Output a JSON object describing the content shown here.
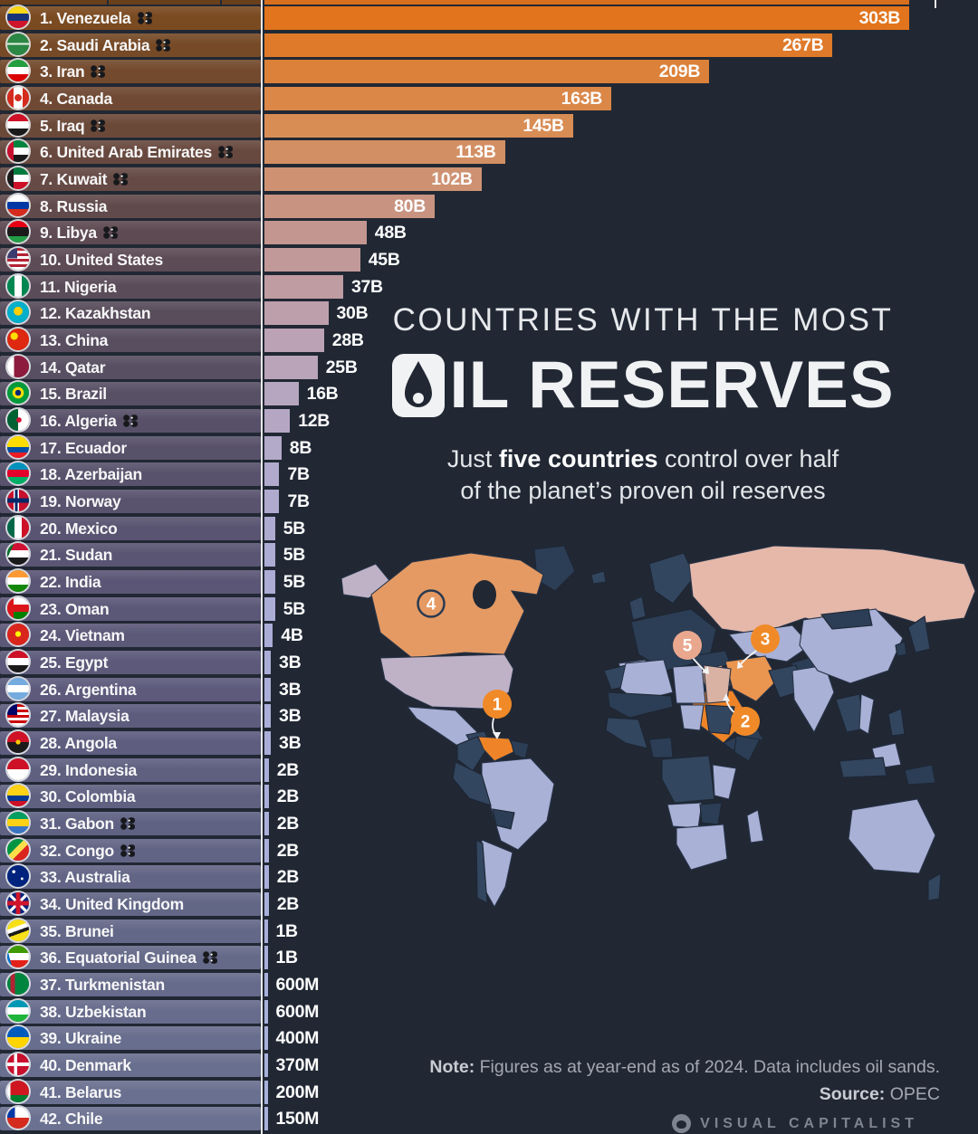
{
  "title": {
    "line1": "COUNTRIES WITH THE MOST",
    "line2_rest": "IL RESERVES"
  },
  "subtitle": {
    "pre": "Just ",
    "bold": "five countries",
    "post": " control over half",
    "line2": "of the planet’s proven oil reserves"
  },
  "footer": {
    "note_label": "Note:",
    "note_text": " Figures as at year-end as of 2024. Data includes oil sands.",
    "source_label": "Source:",
    "source_text": " OPEC",
    "brand": "VISUAL CAPITALIST"
  },
  "map": {
    "colors": {
      "canada": "#e59a63",
      "venezuela": "#ee8427",
      "saudi": "#ee8427",
      "iran": "#ea9550",
      "iraq": "#dba186",
      "russia": "#e5b8aa",
      "marker_orange": "#f08a28",
      "marker_salmon": "#e9a88e"
    },
    "markers": [
      {
        "label": "1",
        "country": "Venezuela"
      },
      {
        "label": "2",
        "country": "Saudi Arabia"
      },
      {
        "label": "3",
        "country": "Iran"
      },
      {
        "label": "4",
        "country": "Canada"
      },
      {
        "label": "5",
        "country": "Iraq"
      }
    ]
  },
  "chart_data": {
    "type": "bar",
    "title": "Countries with the Most Oil Reserves",
    "unit": "billion barrels",
    "xlim": [
      0,
      303
    ],
    "rows": [
      {
        "rank": 1,
        "id": "venezuela",
        "label": "1. Venezuela",
        "opec": true,
        "value": "303B",
        "billions": 303,
        "bar_color": "#e1741c",
        "label_bg": "#7a4a21",
        "flag": "linear-gradient(180deg,#f9d616 33%,#17337a 33% 66%,#cf142b 66%)"
      },
      {
        "rank": 2,
        "id": "saudi-arabia",
        "label": "2. Saudi Arabia",
        "opec": true,
        "value": "267B",
        "billions": 267,
        "bar_color": "#df7a2a",
        "label_bg": "#764a27",
        "flag": "linear-gradient(180deg,#2a8744 44%,#e8f3e8 44% 52%,#2a8744 52%)"
      },
      {
        "rank": 3,
        "id": "iran",
        "label": "3. Iran",
        "opec": true,
        "value": "209B",
        "billions": 209,
        "bar_color": "#dc8139",
        "label_bg": "#734a2d",
        "flag": "linear-gradient(180deg,#239f40 33%,#ffffff 33% 66%,#da0000 66%)"
      },
      {
        "rank": 4,
        "id": "canada",
        "label": "4. Canada",
        "opec": false,
        "value": "163B",
        "billions": 163,
        "bar_color": "#da8747",
        "label_bg": "#6f4933",
        "flag": "radial-gradient(circle at 50% 50%, #d52b1e 0 22%, rgba(0,0,0,0) 24%),linear-gradient(90deg,#d52b1e 30%,#ffffff 30% 70%,#d52b1e 70%)"
      },
      {
        "rank": 5,
        "id": "iraq",
        "label": "5. Iraq",
        "opec": true,
        "value": "145B",
        "billions": 145,
        "bar_color": "#d88d55",
        "label_bg": "#6b4939",
        "flag": "linear-gradient(180deg,#ce1126 33%,#ffffff 33% 66%,#1a1a1a 66%)"
      },
      {
        "rank": 6,
        "id": "uae",
        "label": "6. United Arab Emirates",
        "opec": true,
        "value": "113B",
        "billions": 113,
        "bar_color": "#d38f64",
        "label_bg": "#68493f",
        "flag": "linear-gradient(90deg,#c8102e 30%,rgba(0,0,0,0) 30%),linear-gradient(180deg,#00843d 33%,#ffffff 33% 66%,#1a1a1a 66%)"
      },
      {
        "rank": 7,
        "id": "kuwait",
        "label": "7. Kuwait",
        "opec": true,
        "value": "102B",
        "billions": 102,
        "bar_color": "#ce9272",
        "label_bg": "#654a45",
        "flag": "linear-gradient(90deg,#1a1a1a 30%,rgba(0,0,0,0) 30%),linear-gradient(180deg,#007a3d 33%,#ffffff 33% 66%,#ce1126 66%)"
      },
      {
        "rank": 8,
        "id": "russia",
        "label": "8. Russia",
        "opec": false,
        "value": "80B",
        "billions": 80,
        "bar_color": "#c89481",
        "label_bg": "#614a4c",
        "flag": "linear-gradient(180deg,#ffffff 33%,#0039a6 33% 66%,#d52b1e 66%)"
      },
      {
        "rank": 9,
        "id": "libya",
        "label": "9. Libya",
        "opec": true,
        "value": "48B",
        "billions": 48,
        "bar_color": "#c3968f",
        "label_bg": "#5e4a52",
        "flag": "linear-gradient(180deg,#e70013 30%,#1a1a1a 30% 70%,#239e46 70%)"
      },
      {
        "rank": 10,
        "id": "usa",
        "label": "10. United States",
        "opec": false,
        "value": "45B",
        "billions": 45,
        "bar_color": "#c19998",
        "label_bg": "#5d4b55",
        "flag": "linear-gradient(90deg,#3c3b6e 45%,rgba(0,0,0,0) 45%) 0 0/100% 48% no-repeat,repeating-linear-gradient(180deg,#b22234 0 3px,#ffffff 3px 6px)"
      },
      {
        "rank": 11,
        "id": "nigeria",
        "label": "11. Nigeria",
        "opec": false,
        "value": "37B",
        "billions": 37,
        "bar_color": "#bf9ca2",
        "label_bg": "#5b4c59",
        "flag": "linear-gradient(90deg,#008751 33%,#ffffff 33% 66%,#008751 66%)"
      },
      {
        "rank": 12,
        "id": "kazakhstan",
        "label": "12. Kazakhstan",
        "opec": false,
        "value": "30B",
        "billions": 30,
        "bar_color": "#bd9fab",
        "label_bg": "#594d5c",
        "flag": "radial-gradient(circle at 50% 45%, #ffcd00 0 26%, rgba(0,0,0,0) 28%),linear-gradient(#00afca,#00afca)"
      },
      {
        "rank": 13,
        "id": "china",
        "label": "13. China",
        "opec": false,
        "value": "28B",
        "billions": 28,
        "bar_color": "#bba2b4",
        "label_bg": "#584e60",
        "flag": "radial-gradient(circle at 32% 35%, #ffde00 0 17%, rgba(0,0,0,0) 19%),linear-gradient(#de2910,#de2910)"
      },
      {
        "rank": 14,
        "id": "qatar",
        "label": "14. Qatar",
        "opec": false,
        "value": "25B",
        "billions": 25,
        "bar_color": "#b9a4b9",
        "label_bg": "#584f62",
        "flag": "linear-gradient(90deg,#ffffff 32%,#8d1b3d 32%)"
      },
      {
        "rank": 15,
        "id": "brazil",
        "label": "15. Brazil",
        "opec": false,
        "value": "16B",
        "billions": 16,
        "bar_color": "#b7a6bf",
        "label_bg": "#585065",
        "flag": "radial-gradient(circle at 50% 50%, #002776 0 18%, rgba(0,0,0,0) 20%),radial-gradient(circle at 50% 50%, #ffdf00 0 36%, rgba(0,0,0,0) 38%),linear-gradient(#009b3a,#009b3a)"
      },
      {
        "rank": 16,
        "id": "algeria",
        "label": "16. Algeria",
        "opec": true,
        "value": "12B",
        "billions": 12,
        "bar_color": "#b5a7c4",
        "label_bg": "#585068",
        "flag": "radial-gradient(circle at 54% 50%, #d21034 0 15%, rgba(0,0,0,0) 17%),linear-gradient(90deg,#006233 50%,#ffffff 50%)"
      },
      {
        "rank": 17,
        "id": "ecuador",
        "label": "17. Ecuador",
        "opec": false,
        "value": "8B",
        "billions": 8,
        "bar_color": "#b3a9c9",
        "label_bg": "#58516a",
        "flag": "linear-gradient(180deg,#ffdd00 50%,#034ea2 50% 75%,#ed1c24 75%)"
      },
      {
        "rank": 18,
        "id": "azerbaijan",
        "label": "18. Azerbaijan",
        "opec": false,
        "value": "7B",
        "billions": 7,
        "bar_color": "#b1aacc",
        "label_bg": "#58526c",
        "flag": "linear-gradient(180deg,#0092bc 33%,#e4002b 33% 66%,#00ae65 66%)"
      },
      {
        "rank": 19,
        "id": "norway",
        "label": "19. Norway",
        "opec": false,
        "value": "7B",
        "billions": 7,
        "bar_color": "#b0aacf",
        "label_bg": "#59536e",
        "flag": "linear-gradient(180deg,rgba(0,0,0,0) 40%,#002868 40% 60%,rgba(0,0,0,0) 60%),linear-gradient(90deg,rgba(0,0,0,0) 30%,#ffffff 30% 36%,#002868 36% 48%,#ffffff 48% 54%,rgba(0,0,0,0) 54%),linear-gradient(#c8102e,#c8102e)"
      },
      {
        "rank": 20,
        "id": "mexico",
        "label": "20. Mexico",
        "opec": false,
        "value": "5B",
        "billions": 5,
        "bar_color": "#aeabd1",
        "label_bg": "#595471",
        "flag": "linear-gradient(90deg,#006847 33%,#ffffff 33% 66%,#ce1126 66%)"
      },
      {
        "rank": 21,
        "id": "sudan",
        "label": "21. Sudan",
        "opec": false,
        "value": "5B",
        "billions": 5,
        "bar_color": "#adacd4",
        "label_bg": "#5a5573",
        "flag": "linear-gradient(115deg,#007229 22%,rgba(0,0,0,0) 22%),linear-gradient(180deg,#d21034 33%,#ffffff 33% 66%,#1a1a1a 66%)"
      },
      {
        "rank": 22,
        "id": "india",
        "label": "22. India",
        "opec": false,
        "value": "5B",
        "billions": 5,
        "bar_color": "#acacd5",
        "label_bg": "#5b5675",
        "flag": "linear-gradient(180deg,#ff9933 33%,#ffffff 33% 66%,#138808 66%)"
      },
      {
        "rank": 23,
        "id": "oman",
        "label": "23. Oman",
        "opec": false,
        "value": "5B",
        "billions": 5,
        "bar_color": "#acadd6",
        "label_bg": "#5b5777",
        "flag": "linear-gradient(90deg,#db161b 30%,rgba(0,0,0,0) 30%),linear-gradient(180deg,#ffffff 33%,#db161b 33% 66%,#008000 66%)"
      },
      {
        "rank": 24,
        "id": "vietnam",
        "label": "24. Vietnam",
        "opec": false,
        "value": "4B",
        "billions": 4,
        "bar_color": "#abadd7",
        "label_bg": "#5c5878",
        "flag": "radial-gradient(circle at 50% 48%, #ffff00 0 17%, rgba(0,0,0,0) 19%),linear-gradient(#da251d,#da251d)"
      },
      {
        "rank": 25,
        "id": "egypt",
        "label": "25. Egypt",
        "opec": false,
        "value": "3B",
        "billions": 3,
        "bar_color": "#aaaed7",
        "label_bg": "#5c597a",
        "flag": "linear-gradient(180deg,#ce1126 33%,#ffffff 33% 66%,#1a1a1a 66%)"
      },
      {
        "rank": 26,
        "id": "argentina",
        "label": "26. Argentina",
        "opec": false,
        "value": "3B",
        "billions": 3,
        "bar_color": "#aaaed8",
        "label_bg": "#5d5a7c",
        "flag": "linear-gradient(180deg,#74acdf 33%,#ffffff 33% 66%,#74acdf 66%)"
      },
      {
        "rank": 27,
        "id": "malaysia",
        "label": "27. Malaysia",
        "opec": false,
        "value": "3B",
        "billions": 3,
        "bar_color": "#aaaed8",
        "label_bg": "#5e5c7d",
        "flag": "linear-gradient(90deg,#010066 45%,rgba(0,0,0,0) 45%) 0 0/100% 50% no-repeat,repeating-linear-gradient(180deg,#cc0001 0 3px,#ffffff 3px 6px)"
      },
      {
        "rank": 28,
        "id": "angola",
        "label": "28. Angola",
        "opec": false,
        "value": "3B",
        "billions": 3,
        "bar_color": "#a9aed8",
        "label_bg": "#5e5d7f",
        "flag": "radial-gradient(circle at 50% 50%, #ffcb00 0 14%, rgba(0,0,0,0) 16%),linear-gradient(180deg,#ce1126 50%,#1a1a1a 50%)"
      },
      {
        "rank": 29,
        "id": "indonesia",
        "label": "29. Indonesia",
        "opec": false,
        "value": "2B",
        "billions": 2,
        "bar_color": "#a9aed9",
        "label_bg": "#5f5f80",
        "flag": "linear-gradient(180deg,#ce1126 50%,#ffffff 50%)"
      },
      {
        "rank": 30,
        "id": "colombia",
        "label": "30. Colombia",
        "opec": false,
        "value": "2B",
        "billions": 2,
        "bar_color": "#a9aed9",
        "label_bg": "#606181",
        "flag": "linear-gradient(180deg,#fcd116 50%,#003893 50% 75%,#ce1126 75%)"
      },
      {
        "rank": 31,
        "id": "gabon",
        "label": "31. Gabon",
        "opec": true,
        "value": "2B",
        "billions": 2,
        "bar_color": "#a9afd9",
        "label_bg": "#606283",
        "flag": "linear-gradient(180deg,#009e60 33%,#fcd116 33% 66%,#3a75c4 66%)"
      },
      {
        "rank": 32,
        "id": "congo",
        "label": "32. Congo",
        "opec": true,
        "value": "2B",
        "billions": 2,
        "bar_color": "#a9afda",
        "label_bg": "#616484",
        "flag": "linear-gradient(135deg,#009543 40%,#fbde4a 40% 60%,#dc241f 60%)"
      },
      {
        "rank": 33,
        "id": "australia",
        "label": "33. Australia",
        "opec": false,
        "value": "2B",
        "billions": 2,
        "bar_color": "#a9afda",
        "label_bg": "#626585",
        "flag": "radial-gradient(circle at 30% 30%, #ffffff 0 7%, rgba(0,0,0,0) 8%),radial-gradient(circle at 68% 62%, #ffffff 0 6%, rgba(0,0,0,0) 7%),linear-gradient(#00247d,#00247d)"
      },
      {
        "rank": 34,
        "id": "uk",
        "label": "34. United Kingdom",
        "opec": false,
        "value": "2B",
        "billions": 2,
        "bar_color": "#a8afda",
        "label_bg": "#636786",
        "flag": "linear-gradient(180deg,rgba(0,0,0,0) 40%,#cf142b 40% 60%,rgba(0,0,0,0) 60%),linear-gradient(90deg,rgba(0,0,0,0) 40%,#cf142b 40% 60%,rgba(0,0,0,0) 60%),linear-gradient(45deg,rgba(0,0,0,0) 45%,#ffffff 45% 55%,rgba(0,0,0,0) 55%),linear-gradient(135deg,rgba(0,0,0,0) 45%,#ffffff 45% 55%,rgba(0,0,0,0) 55%),linear-gradient(#00247d,#00247d)"
      },
      {
        "rank": 35,
        "id": "brunei",
        "label": "35. Brunei",
        "opec": false,
        "value": "1B",
        "billions": 1,
        "bar_color": "#a8afdb",
        "label_bg": "#646888",
        "flag": "linear-gradient(160deg,rgba(0,0,0,0) 35%,#ffffff 35% 50%,#1a1a1a 50% 62%,rgba(0,0,0,0) 62%),linear-gradient(#f7e017,#f7e017)"
      },
      {
        "rank": 36,
        "id": "equatorial-guinea",
        "label": "36. Equatorial Guinea",
        "opec": true,
        "value": "1B",
        "billions": 1,
        "bar_color": "#a8afdb",
        "label_bg": "#656a89",
        "flag": "linear-gradient(75deg,#0073ce 18%,rgba(0,0,0,0) 18%),linear-gradient(180deg,#3e9a00 33%,#ffffff 33% 66%,#e32118 66%)"
      },
      {
        "rank": 37,
        "id": "turkmenistan",
        "label": "37. Turkmenistan",
        "opec": false,
        "value": "600M",
        "billions": 0.6,
        "bar_color": "#a8b0db",
        "label_bg": "#666b8b",
        "flag": "linear-gradient(90deg,rgba(0,0,0,0) 15%,#b22234 15% 35%,rgba(0,0,0,0) 35%),linear-gradient(#00853f,#00853f)"
      },
      {
        "rank": 38,
        "id": "uzbekistan",
        "label": "38. Uzbekistan",
        "opec": false,
        "value": "600M",
        "billions": 0.6,
        "bar_color": "#a8b0dc",
        "label_bg": "#676c8c",
        "flag": "linear-gradient(180deg,#0099b5 33%,#ffffff 33% 66%,#1eb53a 66%)"
      },
      {
        "rank": 39,
        "id": "ukraine",
        "label": "39. Ukraine",
        "opec": false,
        "value": "400M",
        "billions": 0.4,
        "bar_color": "#a8b0dc",
        "label_bg": "#686e8d",
        "flag": "linear-gradient(180deg,#005bbb 50%,#ffd500 50%)"
      },
      {
        "rank": 40,
        "id": "denmark",
        "label": "40. Denmark",
        "opec": false,
        "value": "370M",
        "billions": 0.37,
        "bar_color": "#a8b0dc",
        "label_bg": "#696f8e",
        "flag": "linear-gradient(180deg,rgba(0,0,0,0) 42%,#ffffff 42% 58%,rgba(0,0,0,0) 58%),linear-gradient(90deg,rgba(0,0,0,0) 32%,#ffffff 32% 46%,rgba(0,0,0,0) 46%),linear-gradient(#c8102e,#c8102e)"
      },
      {
        "rank": 41,
        "id": "belarus",
        "label": "41. Belarus",
        "opec": false,
        "value": "200M",
        "billions": 0.2,
        "bar_color": "#a8b0dc",
        "label_bg": "#6a708f",
        "flag": "linear-gradient(90deg,#ffffff 14%,rgba(0,0,0,0) 14%),linear-gradient(180deg,#ce1720 66%,#007c30 66%)"
      },
      {
        "rank": 42,
        "id": "chile",
        "label": "42. Chile",
        "opec": false,
        "value": "150M",
        "billions": 0.15,
        "bar_color": "#a8b0dc",
        "label_bg": "#6b7190",
        "flag": "linear-gradient(90deg,#0039a6 35%,rgba(0,0,0,0) 35%) 0 0/100% 50% no-repeat,linear-gradient(180deg,#ffffff 50%,#d52b1e 50%)"
      }
    ]
  }
}
